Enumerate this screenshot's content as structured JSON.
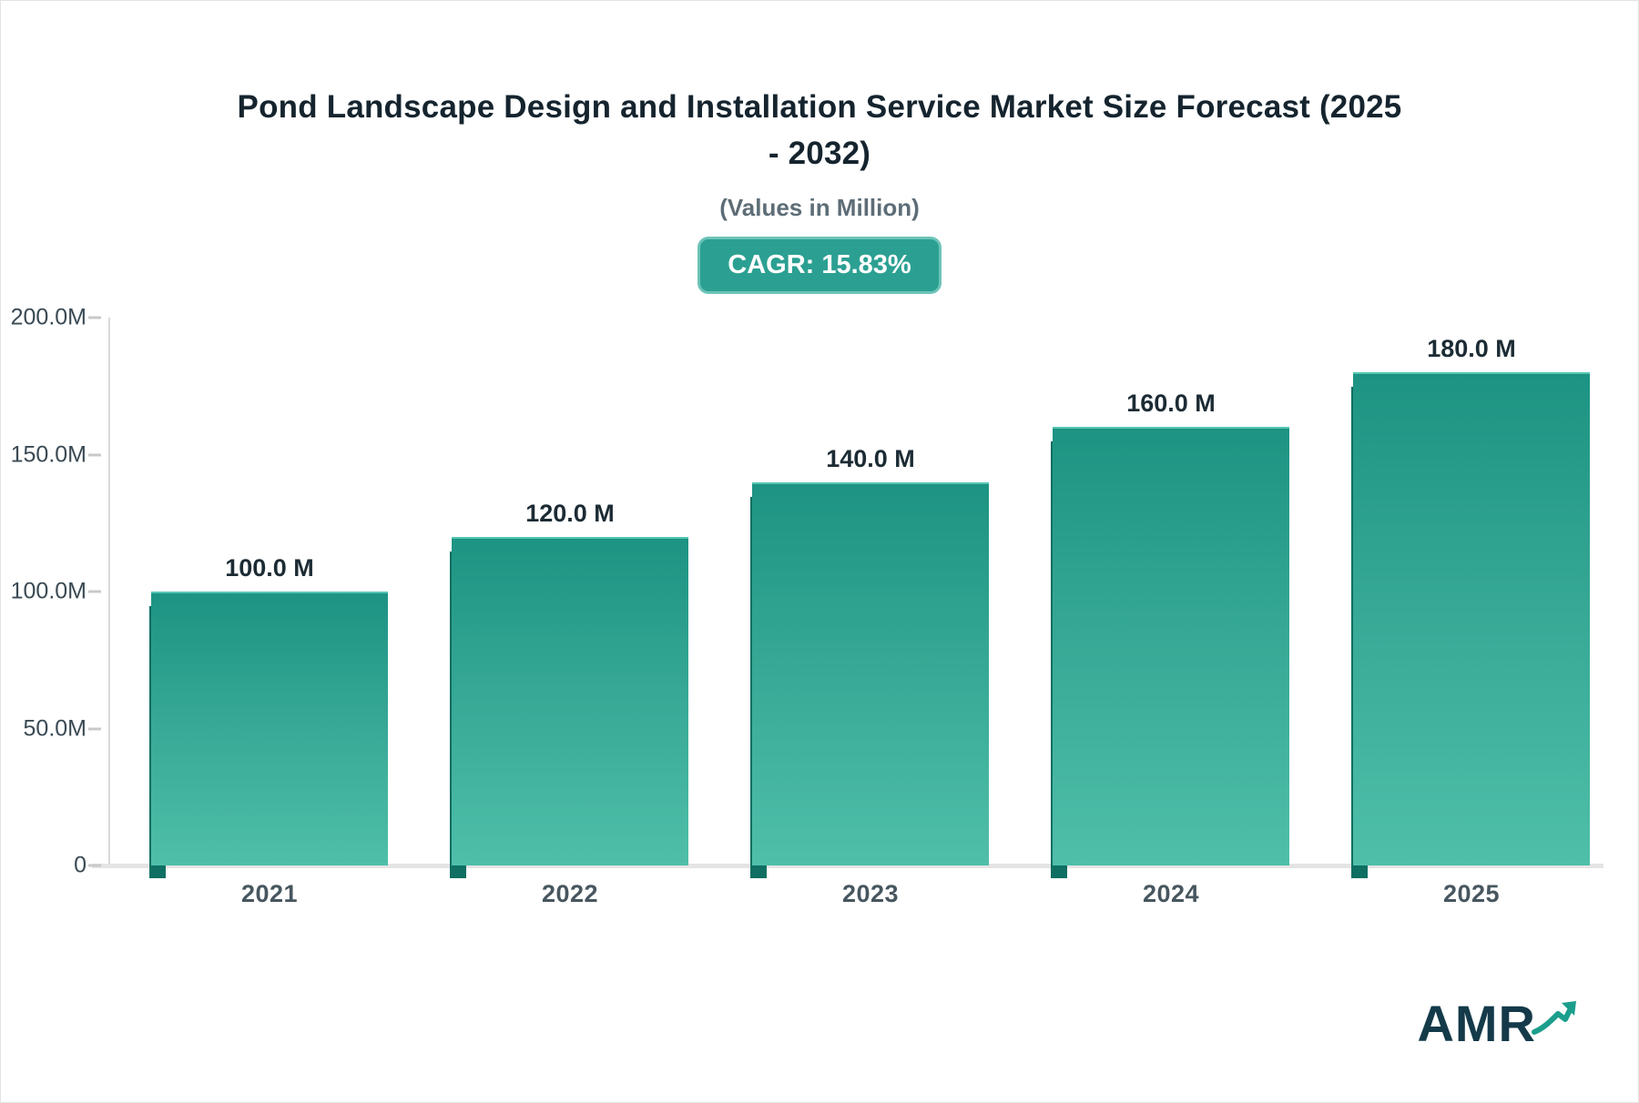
{
  "header": {
    "title": "Pond Landscape Design and Installation Service Market Size Forecast (2025 - 2032)",
    "subtitle": "(Values in Million)",
    "cagr_badge": "CAGR: 15.83%"
  },
  "chart_data": {
    "type": "bar",
    "title": "Pond Landscape Design and Installation Service Market Size Forecast (2025 - 2032)",
    "subtitle": "(Values in Million)",
    "categories": [
      "2021",
      "2022",
      "2023",
      "2024",
      "2025"
    ],
    "values": [
      100,
      120,
      140,
      160,
      180
    ],
    "value_labels": [
      "100.0 M",
      "120.0 M",
      "140.0 M",
      "160.0 M",
      "180.0 M"
    ],
    "unit": "Million",
    "ylim": [
      0,
      200
    ],
    "yticks": [
      {
        "value": 200,
        "label": "200.0M"
      },
      {
        "value": 150,
        "label": "150.0M"
      },
      {
        "value": 100,
        "label": "100.0M"
      },
      {
        "value": 50,
        "label": "50.0M"
      },
      {
        "value": 0,
        "label": "0"
      }
    ],
    "grid": false,
    "legend": "none",
    "bar_color_top": "#1d9383",
    "bar_color_bottom": "#4fbfa9",
    "bar_side_color": "#0e6f62",
    "cagr_percent": 15.83
  },
  "branding": {
    "logo_text": "AMR",
    "logo_color": "#143a4a",
    "logo_arrow_color": "#1b9e8c"
  }
}
